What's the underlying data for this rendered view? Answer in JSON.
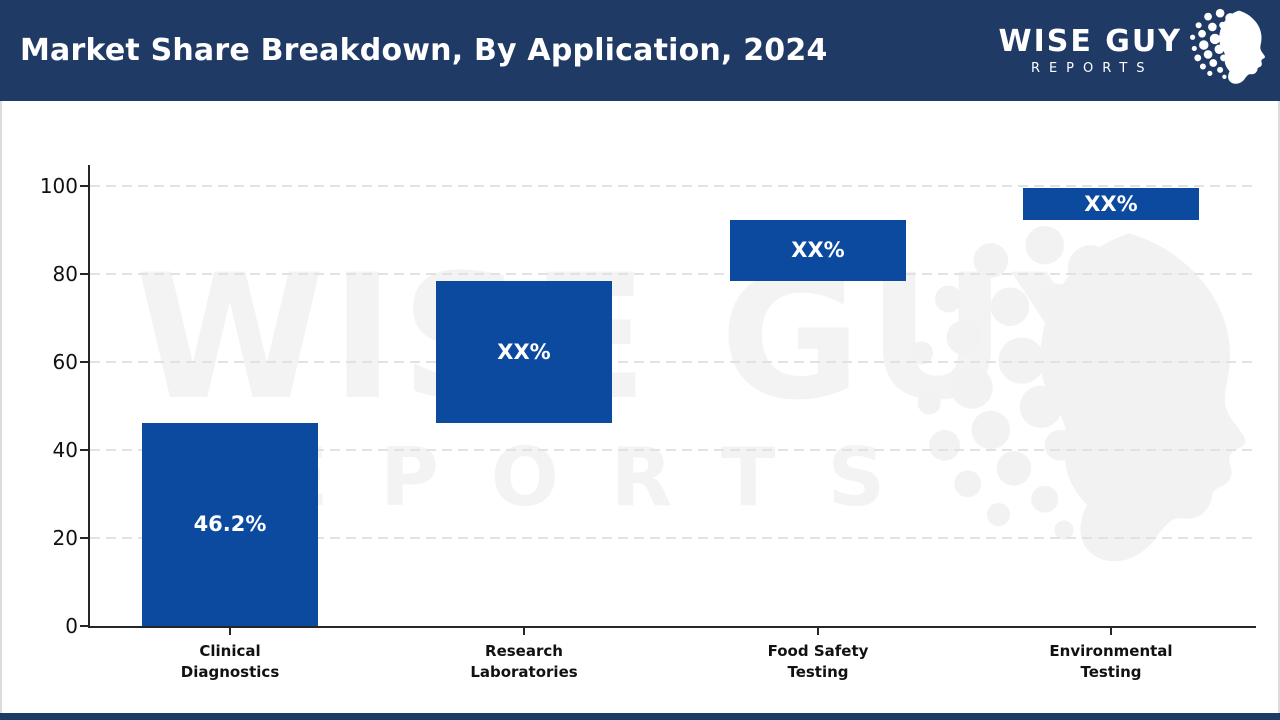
{
  "header": {
    "title": "Market Share Breakdown, By Application, 2024",
    "logo": {
      "line1": "WISE GUY",
      "line2": "REPORTS"
    },
    "bg_color": "#203a66"
  },
  "watermark": {
    "line1": "WISE GUY",
    "line2": "REPORTS"
  },
  "chart_data": {
    "type": "bar",
    "subtype": "waterfall",
    "title": "Market Share Breakdown, By Application, 2024",
    "categories": [
      "Clinical Diagnostics",
      "Research Laboratories",
      "Food Safety Testing",
      "Environmental Testing"
    ],
    "category_lines": [
      [
        "Clinical",
        "Diagnostics"
      ],
      [
        "Research",
        "Laboratories"
      ],
      [
        "Food Safety",
        "Testing"
      ],
      [
        "Environmental",
        "Testing"
      ]
    ],
    "segments": [
      {
        "category": "Clinical Diagnostics",
        "start": 0,
        "end": 46.2,
        "label": "46.2%"
      },
      {
        "category": "Research Laboratories",
        "start": 46.2,
        "end": 78.4,
        "label": "XX%"
      },
      {
        "category": "Food Safety Testing",
        "start": 78.4,
        "end": 92.3,
        "label": "XX%"
      },
      {
        "category": "Environmental Testing",
        "start": 92.3,
        "end": 99.6,
        "label": "XX%"
      }
    ],
    "yticks": [
      0,
      20,
      40,
      60,
      80,
      100
    ],
    "ylim": [
      0,
      105
    ],
    "xlabel": "",
    "ylabel": "",
    "grid": "horizontal-dashed",
    "legend": "none",
    "bar_color": "#0c4aa0",
    "bar_label_color": "#ffffff",
    "masked_label": "XX%"
  }
}
